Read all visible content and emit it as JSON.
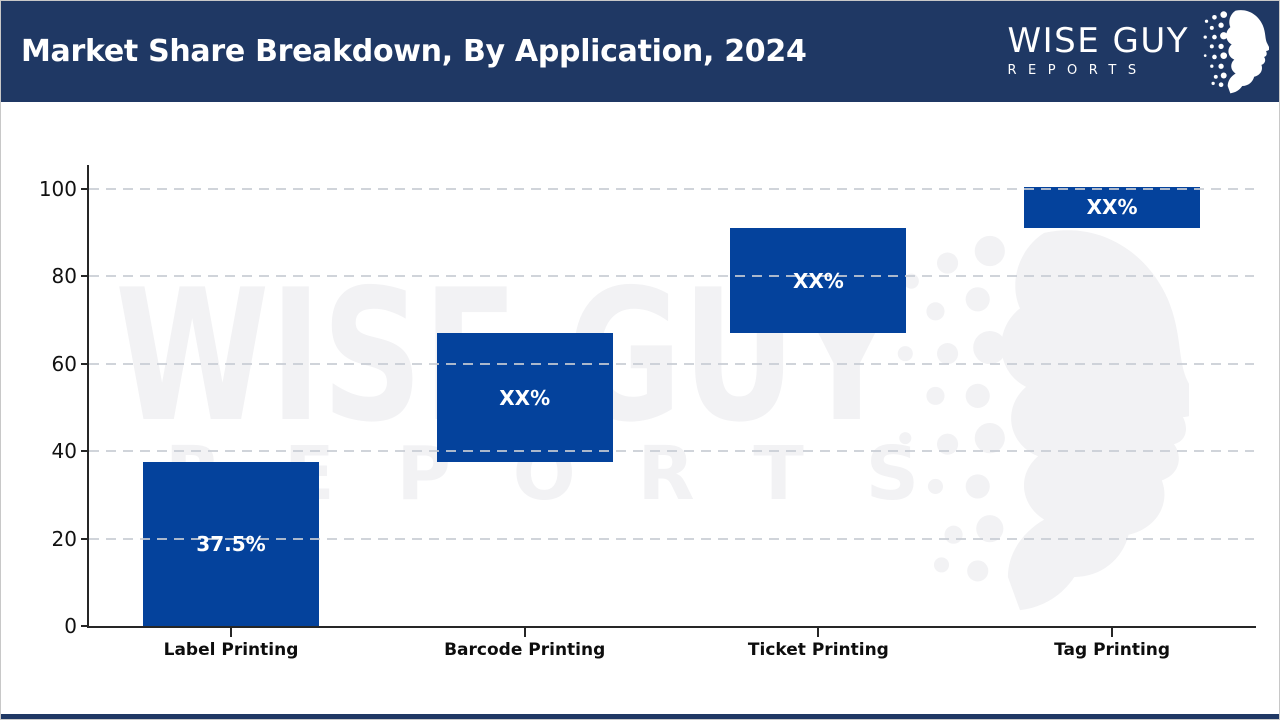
{
  "header": {
    "title": "Market Share Breakdown, By Application, 2024",
    "logo": {
      "wordmark": "WISE GUY",
      "subtitle": "REPORTS"
    }
  },
  "watermark": {
    "wordmark": "WISE GUY",
    "subtitle": "REPORTS"
  },
  "chart_data": {
    "type": "bar",
    "subtype": "waterfall",
    "title": "Market Share Breakdown, By Application, 2024",
    "categories": [
      "Label Printing",
      "Barcode Printing",
      "Ticket Printing",
      "Tag Printing"
    ],
    "segments": [
      {
        "start": 0,
        "end": 37.5,
        "label": "37.5%"
      },
      {
        "start": 37.5,
        "end": 67,
        "label": "XX%"
      },
      {
        "start": 67,
        "end": 91,
        "label": "XX%"
      },
      {
        "start": 91,
        "end": 100.5,
        "label": "XX%"
      }
    ],
    "values": [
      37.5,
      29.5,
      24,
      9.5
    ],
    "yticks": [
      0,
      20,
      40,
      60,
      80,
      100
    ],
    "ylim": [
      0,
      105
    ],
    "xlabel": "",
    "ylabel": "",
    "grid": "horizontal-dashed",
    "legend": "none",
    "bar_color": "#04429C",
    "bar_label_color": "#ffffff",
    "axis_color": "#262626",
    "gridline_color": "#d9d9d9",
    "header_color": "#1F3864",
    "watermark_color": "#f2f2f4"
  }
}
